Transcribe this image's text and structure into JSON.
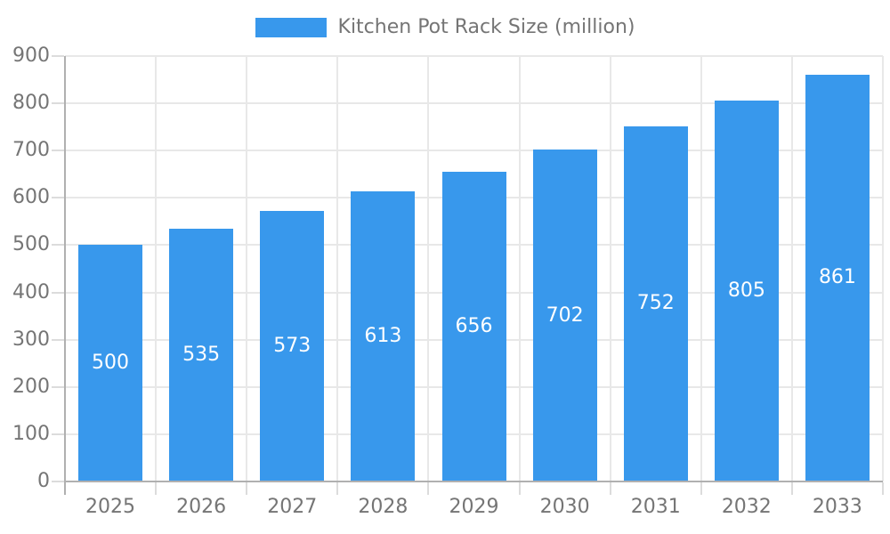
{
  "legend": {
    "label": "Kitchen Pot Rack Size (million)"
  },
  "chart_data": {
    "type": "bar",
    "title": "",
    "legend_entries": [
      "Kitchen Pot Rack Size (million)"
    ],
    "legend_position": "top",
    "categories": [
      "2025",
      "2026",
      "2027",
      "2028",
      "2029",
      "2030",
      "2031",
      "2032",
      "2033"
    ],
    "values": [
      500,
      535,
      573,
      613,
      656,
      702,
      752,
      805,
      861
    ],
    "xlabel": "",
    "ylabel": "",
    "ylim": [
      0,
      900
    ],
    "ytick_step": 100,
    "ytick_labels": [
      "0",
      "100",
      "200",
      "300",
      "400",
      "500",
      "600",
      "700",
      "800",
      "900"
    ],
    "grid": true,
    "value_labels_inside_bars": true,
    "colors": {
      "bar": "#3898ec",
      "value_label": "#ffffff",
      "axis_line": "#b0b0b0",
      "gridline": "#e8e8e8",
      "tick": "#dcdcdc",
      "text": "#757575",
      "background": "#ffffff"
    }
  }
}
